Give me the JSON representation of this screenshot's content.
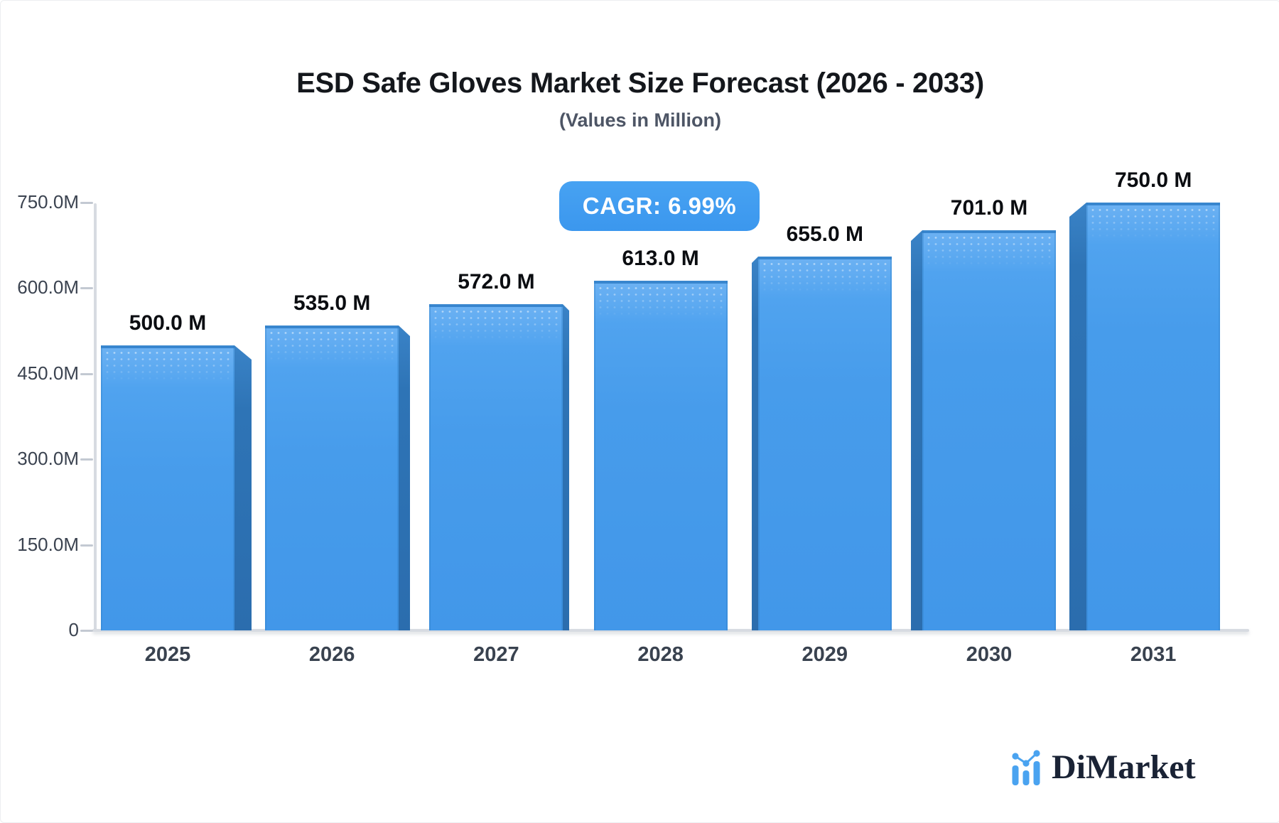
{
  "chart_data": {
    "type": "bar",
    "title": "ESD Safe Gloves Market Size Forecast (2026 - 2033)",
    "subtitle": "(Values in Million)",
    "badge": "CAGR: 6.99%",
    "categories": [
      "2025",
      "2026",
      "2027",
      "2028",
      "2029",
      "2030",
      "2031"
    ],
    "values": [
      500.0,
      535.0,
      572.0,
      613.0,
      655.0,
      701.0,
      750.0
    ],
    "value_labels": [
      "500.0 M",
      "535.0 M",
      "572.0 M",
      "613.0 M",
      "655.0 M",
      "701.0 M",
      "750.0 M"
    ],
    "y_ticks": [
      {
        "value": 0,
        "label": "0"
      },
      {
        "value": 150,
        "label": "150.0M"
      },
      {
        "value": 300,
        "label": "300.0M"
      },
      {
        "value": 450,
        "label": "450.0M"
      },
      {
        "value": 600,
        "label": "600.0M"
      },
      {
        "value": 750,
        "label": "750.0M"
      }
    ],
    "ylim": [
      0,
      750
    ],
    "grid": false,
    "legend": false,
    "bar_color": "#479CEC",
    "bar_side_color": "#2E74B6",
    "badge_color": "#3E9BF0",
    "axis_color": "#D7DBE1"
  },
  "branding": {
    "logo_text": "DiMarket",
    "logo_icon": "bar-chart-icon",
    "logo_blue": "#4AA3F0",
    "logo_text_color": "#1A2335"
  }
}
